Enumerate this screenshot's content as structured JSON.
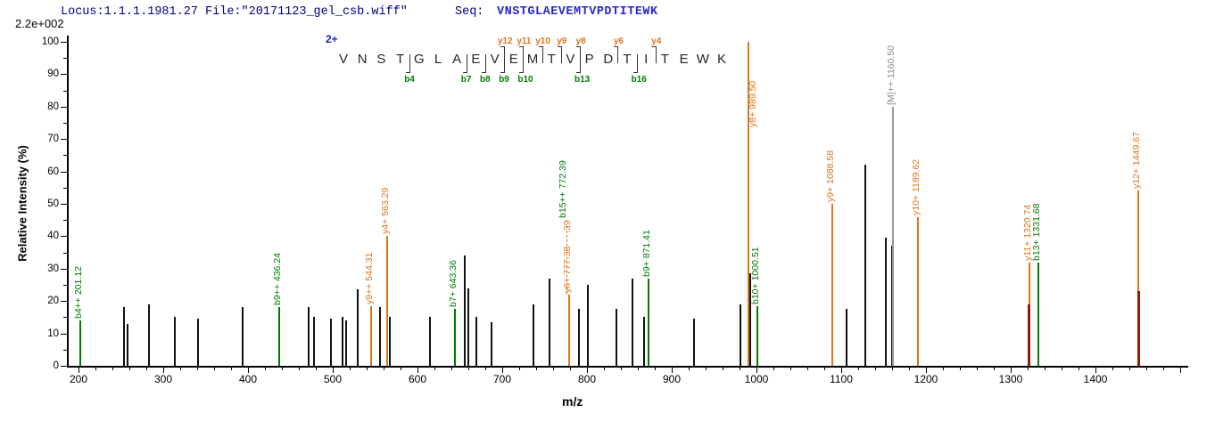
{
  "header": {
    "locus_file": "Locus:1.1.1.1981.27 File:\"20171123_gel_csb.wiff\"",
    "seq_label": "Seq:",
    "seq_value": "VNSTGLAEVEMTVPDTITEWK"
  },
  "base_peak_label": "2.2e+002",
  "axes": {
    "ylabel": "Relative  Intensity (%)",
    "xlabel": "m/z",
    "x_major_start": 200,
    "x_major_end": 1400,
    "x_major_step": 100,
    "x_minor_step": 20,
    "x_minor_end": 1500,
    "y_max": 100,
    "y_major_step": 10,
    "y_minor_step": 5
  },
  "sequence_annotation": {
    "charge": "2+",
    "residues": [
      "V",
      "N",
      "S",
      "T",
      "G",
      "L",
      "A",
      "E",
      "V",
      "E",
      "M",
      "T",
      "V",
      "P",
      "D",
      "T",
      "I",
      "T",
      "E",
      "W",
      "K"
    ],
    "cuts": [
      {
        "after": 4,
        "b": "b4"
      },
      {
        "after": 7,
        "b": "b7"
      },
      {
        "after": 8,
        "b": "b8"
      },
      {
        "after": 9,
        "b": "b9",
        "y": "y12"
      },
      {
        "after": 10,
        "b": "b10",
        "y": "y11"
      },
      {
        "after": 11,
        "y": "y10"
      },
      {
        "after": 12,
        "y": "y9"
      },
      {
        "after": 13,
        "b": "b13",
        "y": "y8"
      },
      {
        "after": 15,
        "y": "y6"
      },
      {
        "after": 16,
        "b": "b16"
      },
      {
        "after": 17,
        "y": "y4"
      }
    ]
  },
  "colors": {
    "b_ion": "#007b00",
    "y_ion": "#e0751c",
    "precursor_line": "#999999",
    "precursor_label": "#8c8c8c",
    "peak_black": "#111111",
    "peak_dark_red": "#8b1e00",
    "header_navy": "#000080",
    "seq_blue": "#2929cc",
    "charge_blue": "#2222cc"
  },
  "chart_data": {
    "type": "bar",
    "subtype": "ms2_fragment_spectrum",
    "xlabel": "m/z",
    "ylabel": "Relative Intensity (%)",
    "xlim": [
      186,
      1510
    ],
    "ylim": [
      0,
      100
    ],
    "base_peak_intensity": "2.2e+002",
    "precursor_charge": "2+",
    "peptide": "VNSTGLAEVEMTVPDTITEWK",
    "labeled_peaks": [
      {
        "label": "b4++ 201.12",
        "mz": 201.12,
        "intensity_pct": 14,
        "ion": "b"
      },
      {
        "label": "b9++ 436.24",
        "mz": 436.24,
        "intensity_pct": 18,
        "ion": "b"
      },
      {
        "label": "y9++ 544.31",
        "mz": 544.31,
        "intensity_pct": 18.5,
        "ion": "y"
      },
      {
        "label": "y4+ 563.29",
        "mz": 563.29,
        "intensity_pct": 40,
        "ion": "y"
      },
      {
        "label": "b7+ 643.36",
        "mz": 643.36,
        "intensity_pct": 17.5,
        "ion": "b"
      },
      {
        "label": "b15++ 772.39",
        "mz": 772.39,
        "intensity_pct": 45,
        "ion": "b",
        "floating": true
      },
      {
        "label": "y6+ 777.38",
        "mz": 777.38,
        "intensity_pct": 22,
        "ion": "y",
        "dashed_to_pct": 43,
        "extra_label": ".39",
        "extra_bottom_pct": 41
      },
      {
        "label": "b9+ 871.41",
        "mz": 871.41,
        "intensity_pct": 27,
        "ion": "b"
      },
      {
        "label": "y8+ 989.50",
        "mz": 989.5,
        "intensity_pct": 100,
        "ion": "y",
        "label_bottom_pct": 73,
        "label_dx": 7
      },
      {
        "label": "b10+ 1000.51",
        "mz": 1000.51,
        "intensity_pct": 18.5,
        "ion": "b"
      },
      {
        "label": "y9+ 1088.58",
        "mz": 1088.58,
        "intensity_pct": 50,
        "ion": "y"
      },
      {
        "label": "[M]++ 1160.50",
        "mz": 1160.5,
        "intensity_pct": 80,
        "ion": "precursor"
      },
      {
        "label": "y10+ 1189.62",
        "mz": 1189.62,
        "intensity_pct": 46,
        "ion": "y"
      },
      {
        "label": "y11+ 1320.74",
        "mz": 1320.74,
        "intensity_pct": 32,
        "ion": "y",
        "dark_bottom_pct": 19
      },
      {
        "label": "b13+ 1331.68",
        "mz": 1331.68,
        "intensity_pct": 32,
        "ion": "b"
      },
      {
        "label": "y12+ 1449.67",
        "mz": 1449.67,
        "intensity_pct": 54,
        "ion": "y",
        "dark_bottom_pct": 23
      }
    ],
    "unlabeled_peaks": [
      [
        253,
        18
      ],
      [
        257,
        13
      ],
      [
        282,
        19
      ],
      [
        313,
        15
      ],
      [
        340,
        14.5
      ],
      [
        393,
        18
      ],
      [
        471,
        18
      ],
      [
        477,
        15
      ],
      [
        497,
        14.5
      ],
      [
        511,
        15
      ],
      [
        515,
        14
      ],
      [
        528,
        23.5
      ],
      [
        555,
        18
      ],
      [
        566,
        15
      ],
      [
        614,
        15
      ],
      [
        655,
        34
      ],
      [
        658.5,
        24
      ],
      [
        668,
        15
      ],
      [
        686,
        13.5
      ],
      [
        736,
        19
      ],
      [
        755,
        27
      ],
      [
        789.5,
        17.5
      ],
      [
        800,
        25
      ],
      [
        834,
        17.5
      ],
      [
        853,
        27
      ],
      [
        866,
        15
      ],
      [
        925,
        14.5
      ],
      [
        980,
        19
      ],
      [
        991.5,
        28.5
      ],
      [
        1105,
        17.5
      ],
      [
        1127.5,
        62
      ],
      [
        1151.5,
        39.5
      ],
      [
        1158.5,
        37
      ]
    ]
  }
}
